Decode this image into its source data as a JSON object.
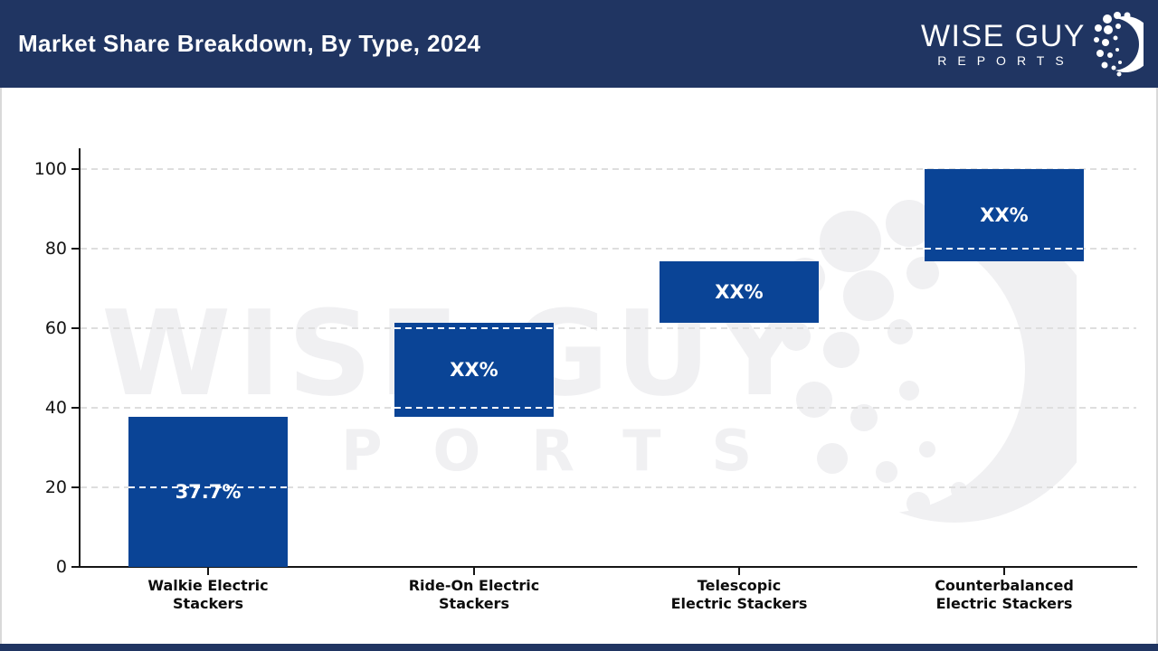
{
  "header": {
    "title": "Market Share Breakdown, By Type, 2024",
    "bg_color": "#203562",
    "logo": {
      "line1": "WISE GUY",
      "line2": "REPORTS"
    }
  },
  "watermark": {
    "line1": "WISE GUY",
    "line2": "REPORTS"
  },
  "chart_data": {
    "type": "bar",
    "subtype": "waterfall",
    "title": "Market Share Breakdown, By Type, 2024",
    "xlabel": "",
    "ylabel": "",
    "categories": [
      "Walkie Electric\nStackers",
      "Ride-On Electric\nStackers",
      "Telescopic\nElectric Stackers",
      "Counterbalanced\nElectric Stackers"
    ],
    "bars": [
      {
        "label": "37.7%",
        "start": 0,
        "end": 37.7
      },
      {
        "label": "XX%",
        "start": 37.7,
        "end": 61.4
      },
      {
        "label": "XX%",
        "start": 61.4,
        "end": 76.9
      },
      {
        "label": "XX%",
        "start": 76.9,
        "end": 100
      }
    ],
    "bar_color": "#0a4496",
    "yticks": [
      0,
      20,
      40,
      60,
      80,
      100
    ],
    "ylim": [
      0,
      105
    ],
    "grid": "dashed-horizontal",
    "legend": "none"
  }
}
